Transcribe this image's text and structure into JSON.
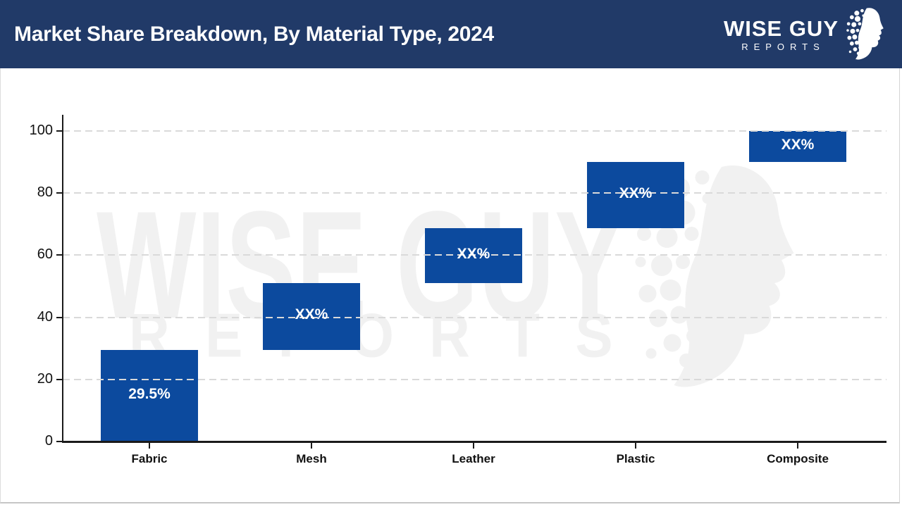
{
  "header": {
    "title": "Market Share Breakdown, By Material Type, 2024",
    "logo": {
      "line1": "WISE GUY",
      "line2": "REPORTS"
    }
  },
  "watermark": {
    "line1": "WISE GUY",
    "line2": "R E P O R T S"
  },
  "colors": {
    "header_bg": "#213a68",
    "bar": "#0c4a9e",
    "bar_label": "#ffffff",
    "grid": "#d9d9d9",
    "axis": "#1a1a1a",
    "watermark": "#f1f1f1",
    "border": "#c9c9c9"
  },
  "chart_data": {
    "type": "bar",
    "subtype": "waterfall-floating-bars",
    "title": "Market Share Breakdown, By Material Type, 2024",
    "categories": [
      "Fabric",
      "Mesh",
      "Leather",
      "Plastic",
      "Composite"
    ],
    "segments": [
      {
        "category": "Fabric",
        "start": 0,
        "end": 29.5,
        "label": "29.5%"
      },
      {
        "category": "Mesh",
        "start": 29.5,
        "end": 51,
        "label": "XX%"
      },
      {
        "category": "Leather",
        "start": 51,
        "end": 68.7,
        "label": "XX%"
      },
      {
        "category": "Plastic",
        "start": 68.7,
        "end": 90,
        "label": "XX%"
      },
      {
        "category": "Composite",
        "start": 90,
        "end": 100,
        "label": "XX%"
      }
    ],
    "xlabel": "",
    "ylabel": "",
    "yticks": [
      0,
      20,
      40,
      60,
      80,
      100
    ],
    "ylim": [
      0,
      105
    ],
    "grid": "horizontal-dashed",
    "legend": "none"
  }
}
